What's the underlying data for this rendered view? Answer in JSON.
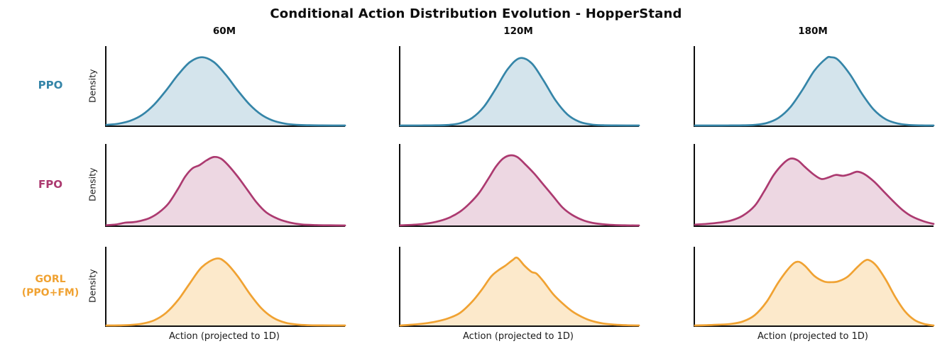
{
  "chart_data": {
    "type": "area",
    "title": "Conditional Action Distribution Evolution - HopperStand",
    "xlabel": "Action (projected to 1D)",
    "ylabel": "Density",
    "columns": [
      "60M",
      "120M",
      "180M"
    ],
    "rows": [
      {
        "label": "PPO",
        "color": "#3585a8",
        "fill": "#d4e4ec"
      },
      {
        "label": "FPO",
        "color": "#ac3a70",
        "fill": "#edd7e2"
      },
      {
        "label": "GORL\n(PPO+FM)",
        "color": "#f0a232",
        "fill": "#fce9cb"
      }
    ],
    "layout": {
      "grid": "3x3",
      "ticks": "none",
      "spines": [
        "left",
        "bottom"
      ],
      "x_range_normalized": [
        0,
        1
      ],
      "y_relative_max": 1
    },
    "series": [
      {
        "row": "PPO",
        "col": "60M",
        "x": [
          0,
          0.05,
          0.1,
          0.15,
          0.2,
          0.25,
          0.3,
          0.35,
          0.4,
          0.45,
          0.5,
          0.55,
          0.6,
          0.65,
          0.7,
          0.75,
          0.8,
          0.85,
          0.9,
          0.95,
          1
        ],
        "y": [
          0.008,
          0.023,
          0.06,
          0.135,
          0.264,
          0.442,
          0.639,
          0.799,
          0.86,
          0.799,
          0.639,
          0.442,
          0.264,
          0.135,
          0.06,
          0.023,
          0.008,
          0.003,
          0.001,
          0,
          0
        ]
      },
      {
        "row": "PPO",
        "col": "120M",
        "x": [
          0,
          0.05,
          0.1,
          0.15,
          0.2,
          0.25,
          0.3,
          0.35,
          0.4,
          0.45,
          0.5,
          0.55,
          0.6,
          0.65,
          0.7,
          0.75,
          0.8,
          0.85,
          0.9,
          0.95,
          1
        ],
        "y": [
          0,
          0,
          0.001,
          0.002,
          0.007,
          0.029,
          0.094,
          0.236,
          0.464,
          0.71,
          0.848,
          0.785,
          0.567,
          0.319,
          0.14,
          0.048,
          0.013,
          0.003,
          0.001,
          0,
          0
        ]
      },
      {
        "row": "PPO",
        "col": "180M",
        "x": [
          0,
          0.05,
          0.1,
          0.15,
          0.2,
          0.25,
          0.3,
          0.35,
          0.4,
          0.45,
          0.5,
          0.55,
          0.57,
          0.6,
          0.65,
          0.7,
          0.75,
          0.8,
          0.85,
          0.9,
          0.95,
          1
        ],
        "y": [
          0,
          0,
          0,
          0.001,
          0.002,
          0.008,
          0.031,
          0.096,
          0.232,
          0.447,
          0.689,
          0.845,
          0.86,
          0.826,
          0.643,
          0.4,
          0.198,
          0.078,
          0.025,
          0.006,
          0.001,
          0
        ]
      },
      {
        "row": "FPO",
        "col": "60M",
        "x": [
          0,
          0.04,
          0.08,
          0.11,
          0.14,
          0.18,
          0.22,
          0.26,
          0.3,
          0.33,
          0.36,
          0.39,
          0.42,
          0.45,
          0.48,
          0.51,
          0.55,
          0.59,
          0.63,
          0.67,
          0.72,
          0.77,
          0.82,
          0.88,
          0.94,
          1
        ],
        "y": [
          0.004,
          0.012,
          0.035,
          0.04,
          0.055,
          0.09,
          0.16,
          0.27,
          0.45,
          0.6,
          0.7,
          0.74,
          0.8,
          0.84,
          0.82,
          0.74,
          0.6,
          0.44,
          0.28,
          0.16,
          0.08,
          0.035,
          0.012,
          0.005,
          0.002,
          0
        ]
      },
      {
        "row": "FPO",
        "col": "120M",
        "x": [
          0,
          0.05,
          0.1,
          0.15,
          0.2,
          0.25,
          0.29,
          0.33,
          0.37,
          0.4,
          0.43,
          0.46,
          0.49,
          0.52,
          0.56,
          0.6,
          0.64,
          0.68,
          0.72,
          0.77,
          0.82,
          0.88,
          0.94,
          1
        ],
        "y": [
          0.002,
          0.008,
          0.02,
          0.045,
          0.09,
          0.17,
          0.27,
          0.4,
          0.58,
          0.72,
          0.82,
          0.86,
          0.84,
          0.76,
          0.64,
          0.5,
          0.36,
          0.22,
          0.13,
          0.06,
          0.025,
          0.008,
          0.002,
          0
        ]
      },
      {
        "row": "FPO",
        "col": "180M",
        "x": [
          0,
          0.05,
          0.1,
          0.15,
          0.2,
          0.25,
          0.29,
          0.33,
          0.37,
          0.4,
          0.43,
          0.46,
          0.5,
          0.53,
          0.56,
          0.59,
          0.62,
          0.65,
          0.68,
          0.71,
          0.75,
          0.79,
          0.83,
          0.87,
          0.91,
          0.96,
          1
        ],
        "y": [
          0.01,
          0.02,
          0.035,
          0.06,
          0.12,
          0.24,
          0.42,
          0.62,
          0.76,
          0.82,
          0.8,
          0.72,
          0.62,
          0.57,
          0.59,
          0.62,
          0.61,
          0.63,
          0.66,
          0.63,
          0.54,
          0.42,
          0.3,
          0.19,
          0.11,
          0.05,
          0.02
        ]
      },
      {
        "row": "GORL\n(PPO+FM)",
        "col": "60M",
        "x": [
          0,
          0.05,
          0.1,
          0.15,
          0.2,
          0.25,
          0.3,
          0.35,
          0.4,
          0.46,
          0.5,
          0.55,
          0.6,
          0.65,
          0.7,
          0.75,
          0.8,
          0.85,
          0.9,
          0.95,
          1
        ],
        "y": [
          0,
          0.001,
          0.006,
          0.023,
          0.066,
          0.161,
          0.323,
          0.538,
          0.742,
          0.85,
          0.8,
          0.626,
          0.405,
          0.217,
          0.096,
          0.035,
          0.011,
          0.003,
          0.001,
          0,
          0
        ]
      },
      {
        "row": "GORL\n(PPO+FM)",
        "col": "120M",
        "x": [
          0,
          0.05,
          0.1,
          0.15,
          0.2,
          0.25,
          0.3,
          0.34,
          0.38,
          0.41,
          0.44,
          0.47,
          0.49,
          0.52,
          0.55,
          0.57,
          0.6,
          0.64,
          0.68,
          0.72,
          0.76,
          0.8,
          0.85,
          0.9,
          0.95,
          1
        ],
        "y": [
          0,
          0.01,
          0.025,
          0.05,
          0.09,
          0.16,
          0.3,
          0.45,
          0.62,
          0.7,
          0.76,
          0.83,
          0.86,
          0.76,
          0.68,
          0.66,
          0.56,
          0.4,
          0.28,
          0.18,
          0.11,
          0.06,
          0.025,
          0.01,
          0.003,
          0
        ]
      },
      {
        "row": "GORL\n(PPO+FM)",
        "col": "180M",
        "x": [
          0,
          0.05,
          0.1,
          0.15,
          0.2,
          0.25,
          0.3,
          0.35,
          0.4,
          0.43,
          0.46,
          0.5,
          0.54,
          0.57,
          0.6,
          0.64,
          0.68,
          0.71,
          0.73,
          0.76,
          0.8,
          0.84,
          0.88,
          0.92,
          0.96,
          1
        ],
        "y": [
          0,
          0.004,
          0.01,
          0.02,
          0.05,
          0.13,
          0.3,
          0.55,
          0.75,
          0.81,
          0.76,
          0.63,
          0.56,
          0.55,
          0.56,
          0.62,
          0.74,
          0.82,
          0.83,
          0.76,
          0.58,
          0.36,
          0.18,
          0.07,
          0.02,
          0
        ]
      }
    ]
  }
}
